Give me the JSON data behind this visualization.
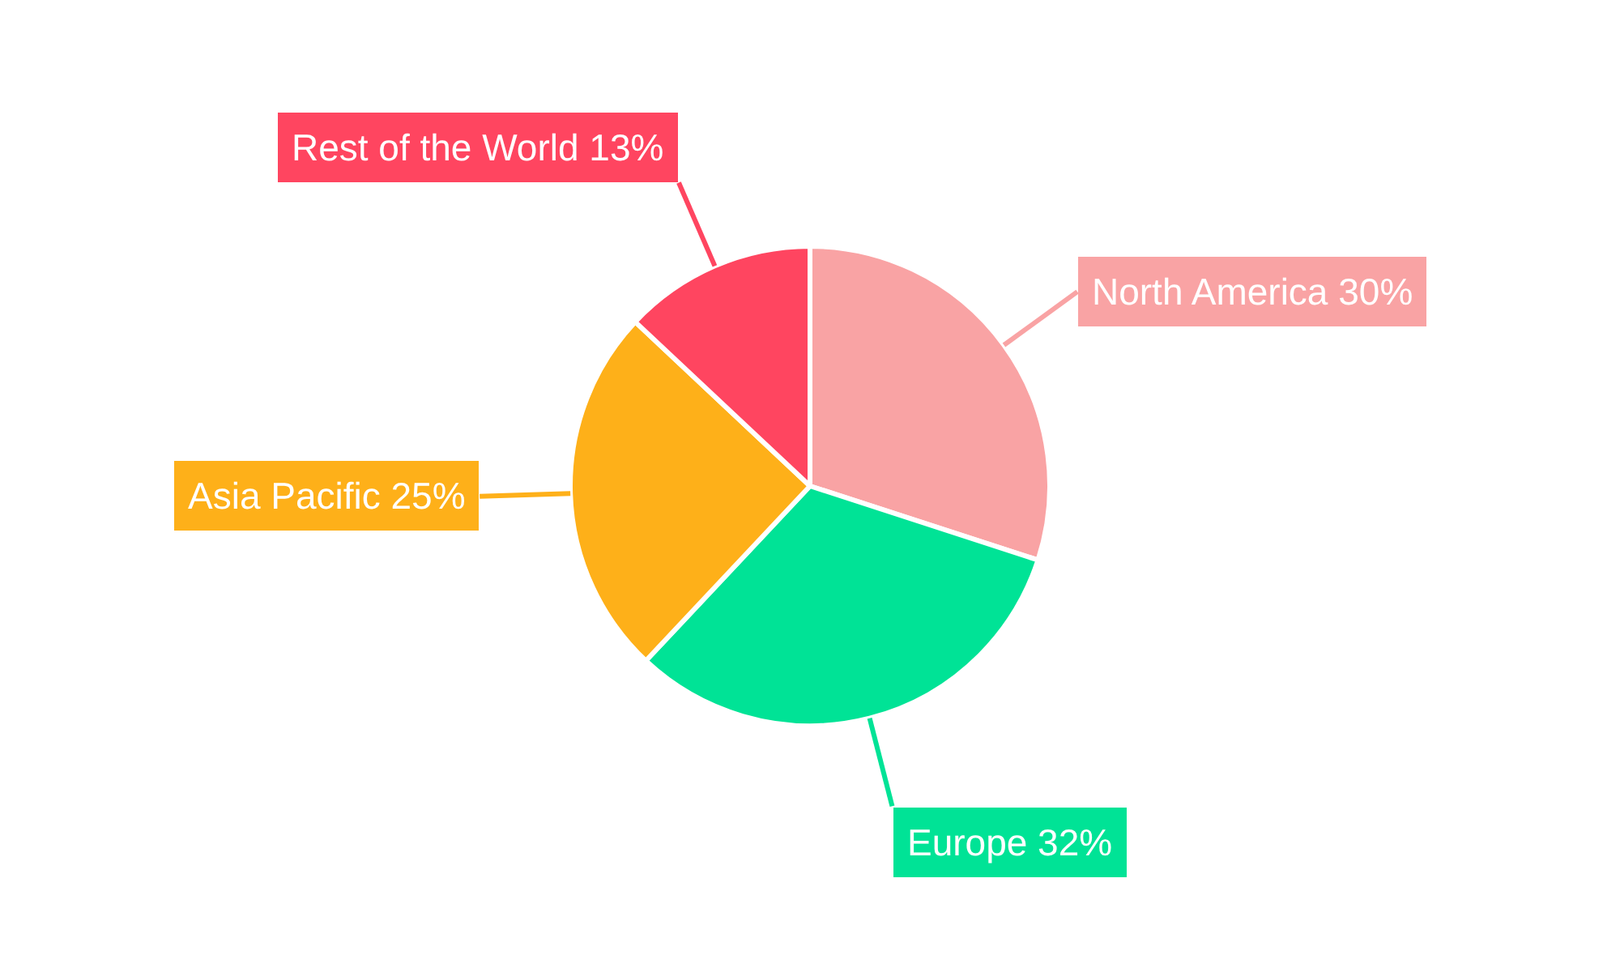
{
  "chart_data": {
    "type": "pie",
    "categories": [
      "North America",
      "Europe",
      "Asia Pacific",
      "Rest of the World"
    ],
    "values": [
      30,
      32,
      25,
      13
    ],
    "value_labels": [
      "30%",
      "32%",
      "25%",
      "13%"
    ],
    "colors": [
      "#f9a3a4",
      "#00e396",
      "#feb019",
      "#ff4560"
    ],
    "legend": false
  }
}
